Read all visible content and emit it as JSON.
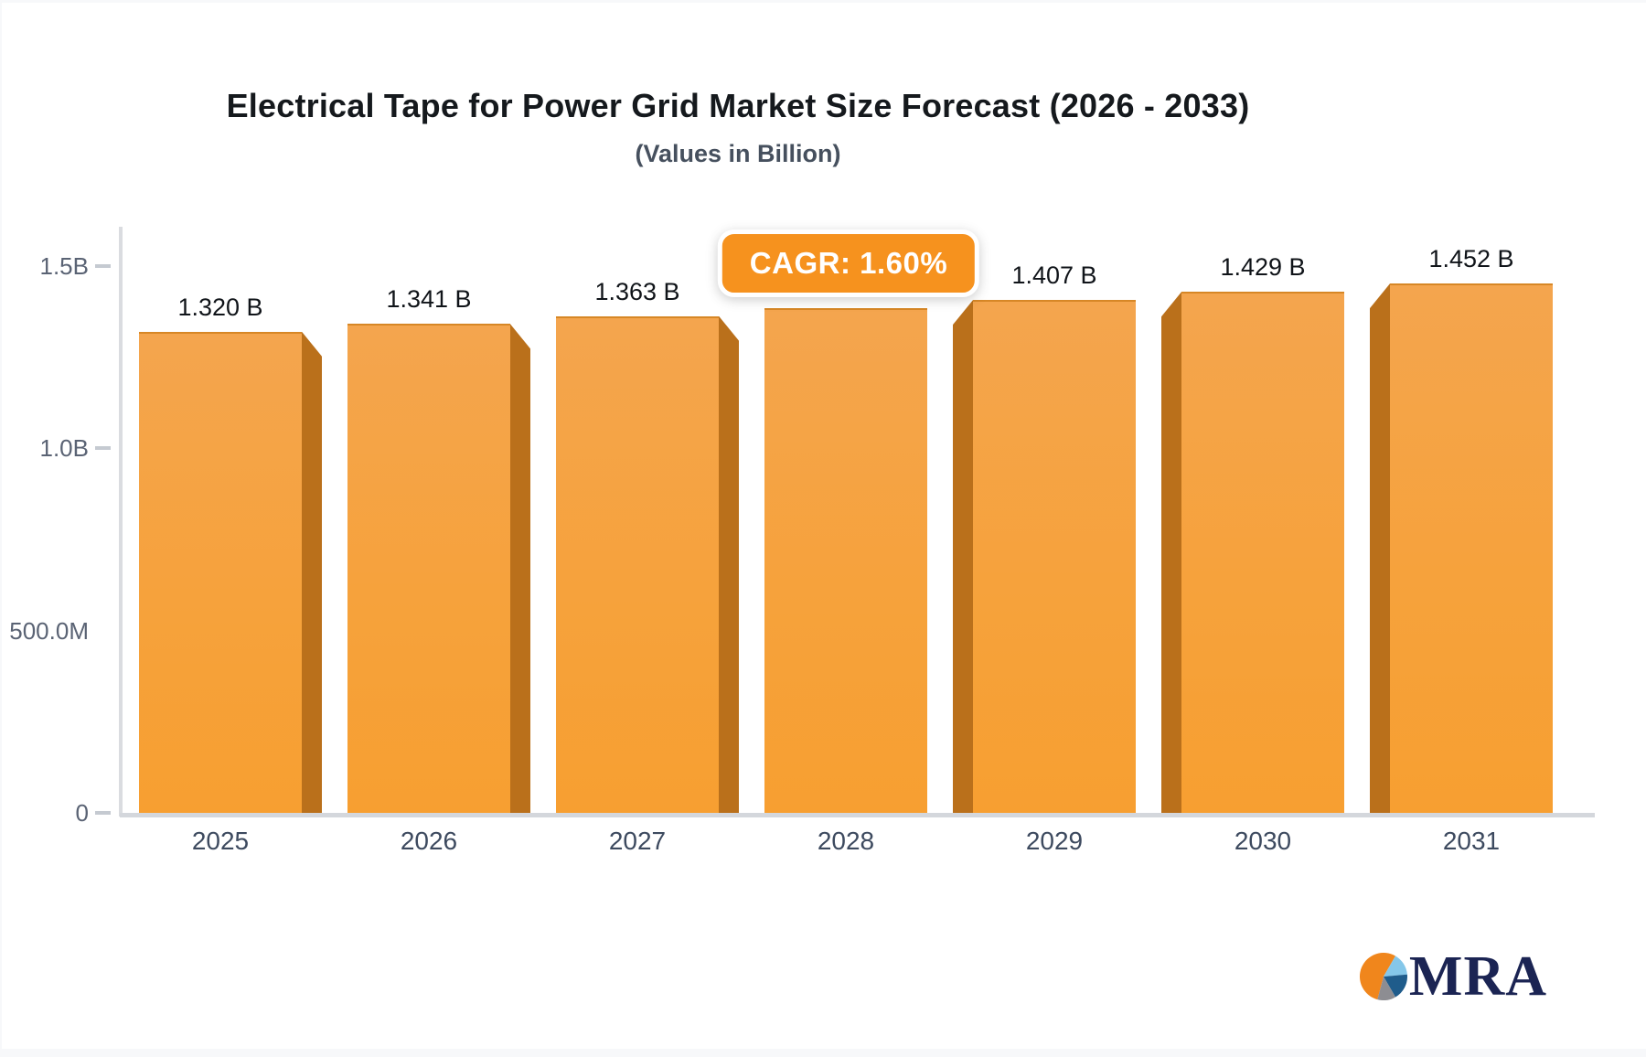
{
  "page": {
    "background": "#f7f8fa",
    "card_background": "#ffffff"
  },
  "header": {
    "title": "Electrical Tape for Power Grid Market Size Forecast (2026 - 2033)",
    "subtitle": "(Values in Billion)"
  },
  "cagr_badge": {
    "label": "CAGR: 1.60%",
    "background": "#f6921e",
    "text_color": "#ffffff"
  },
  "chart_data": {
    "type": "bar",
    "title": "Electrical Tape for Power Grid Market Size Forecast (2026 - 2033)",
    "subtitle": "(Values in Billion)",
    "unit": "Billion",
    "categories": [
      "2025",
      "2026",
      "2027",
      "2028",
      "2029",
      "2030",
      "2031"
    ],
    "values": [
      1.32,
      1.341,
      1.363,
      1.385,
      1.407,
      1.429,
      1.452
    ],
    "bar_labels": [
      "1.320 B",
      "1.341 B",
      "1.363 B",
      "",
      "1.407 B",
      "1.429 B",
      "1.452 B"
    ],
    "note": "2028 value label hidden behind CAGR badge",
    "y_axis": {
      "max": 1.5,
      "ticks": [
        {
          "label": "1.5B",
          "value": 1.5,
          "dash": true
        },
        {
          "label": "1.0B",
          "value": 1.0,
          "dash": true
        },
        {
          "label": "500.0M",
          "value": 0.5,
          "dash": false
        },
        {
          "label": "0",
          "value": 0.0,
          "dash": true
        }
      ]
    },
    "grid": false,
    "legend": false,
    "bar_color": "#f6a23c",
    "bar_side_color": "#ba701b"
  },
  "logo": {
    "text": "MRA",
    "text_color": "#1b2453",
    "pie_colors": {
      "orange": "#f0861c",
      "light_blue": "#85c7e9",
      "navy": "#1f5c8b",
      "gray": "#8d8d92"
    }
  }
}
